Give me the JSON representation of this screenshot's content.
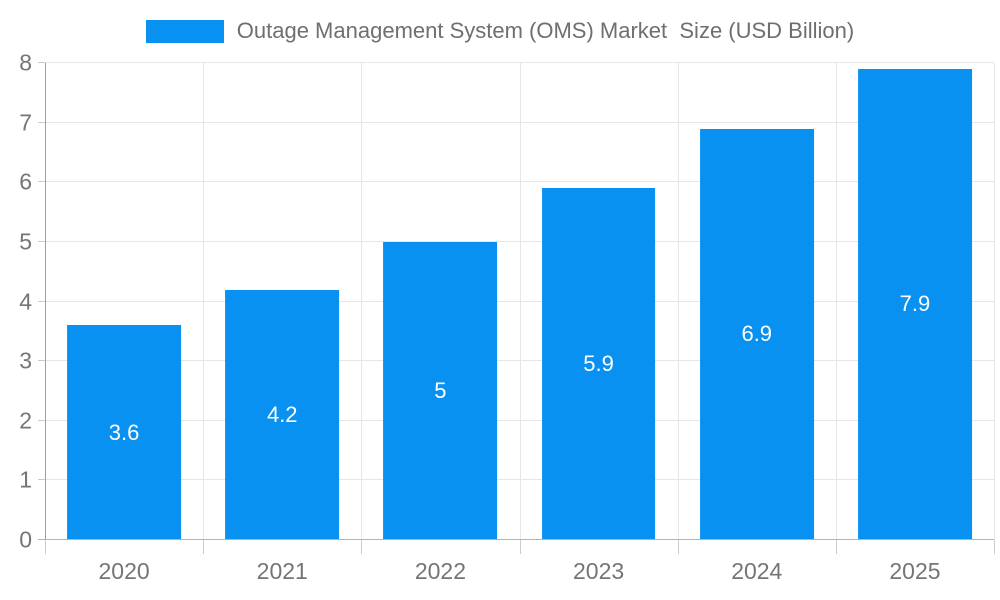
{
  "legend": {
    "label": "Outage Management System (OMS) Market  Size (USD Billion)"
  },
  "colors": {
    "bar": "#0991f2",
    "bar_label_text": "#ffffff",
    "axis_text": "#757575",
    "legend_text": "#6f6f6f",
    "grid_line": "#e6e6e6",
    "y_axis_line": "#9e9e9e",
    "x_axis_line": "#b3b3b3",
    "tick": "#cccccc",
    "background": "#ffffff"
  },
  "chart_data": {
    "type": "bar",
    "title": "Outage Management System (OMS) Market  Size (USD Billion)",
    "categories": [
      "2020",
      "2021",
      "2022",
      "2023",
      "2024",
      "2025"
    ],
    "values": [
      3.6,
      4.2,
      5,
      5.9,
      6.9,
      7.9
    ],
    "bar_labels": [
      "3.6",
      "4.2",
      "5",
      "5.9",
      "6.9",
      "7.9"
    ],
    "xlabel": "",
    "ylabel": "",
    "ylim": [
      0,
      8
    ],
    "yticks": [
      0,
      1,
      2,
      3,
      4,
      5,
      6,
      7,
      8
    ],
    "grid": true,
    "legend_position": "top-center",
    "bar_label_position": "center"
  }
}
